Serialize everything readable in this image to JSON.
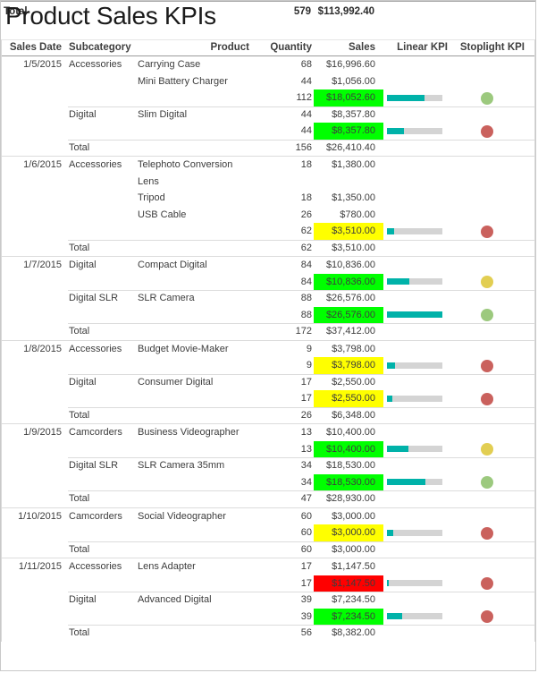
{
  "title": "Product Sales KPIs",
  "columns": [
    "Sales Date",
    "Subcategory",
    "Product",
    "Quantity",
    "Sales",
    "Linear KPI",
    "Stoplight KPI"
  ],
  "colors": {
    "bar_fill": "#00B2A9",
    "bar_track": "#D4D4D4",
    "stoplight_green": "#9CC97E",
    "stoplight_yellow": "#E2CE52",
    "stoplight_red": "#CA615D",
    "cell_green": "#00FF00",
    "cell_yellow": "#FFFF00",
    "cell_red": "#FF0000"
  },
  "groups": [
    {
      "date": "1/5/2015",
      "subgroups": [
        {
          "subcategory": "Accessories",
          "products": [
            {
              "name": "Carrying Case",
              "qty": "68",
              "sales": "$16,996.60"
            },
            {
              "name": "Mini Battery Charger",
              "qty": "44",
              "sales": "$1,056.00"
            }
          ],
          "subtotal": {
            "qty": "112",
            "sales": "$18,052.60",
            "level": "green",
            "bar_pct": 68,
            "stoplight": "green"
          }
        },
        {
          "subcategory": "Digital",
          "products": [
            {
              "name": "Slim Digital",
              "qty": "44",
              "sales": "$8,357.80"
            }
          ],
          "subtotal": {
            "qty": "44",
            "sales": "$8,357.80",
            "level": "green",
            "bar_pct": 31,
            "stoplight": "red"
          }
        }
      ],
      "total": {
        "label": "Total",
        "qty": "156",
        "sales": "$26,410.40"
      }
    },
    {
      "date": "1/6/2015",
      "subgroups": [
        {
          "subcategory": "Accessories",
          "products": [
            {
              "name": "Telephoto Conversion Lens",
              "qty": "18",
              "sales": "$1,380.00"
            },
            {
              "name": "Tripod",
              "qty": "18",
              "sales": "$1,350.00"
            },
            {
              "name": "USB Cable",
              "qty": "26",
              "sales": "$780.00"
            }
          ],
          "subtotal": {
            "qty": "62",
            "sales": "$3,510.00",
            "level": "yellow",
            "bar_pct": 13,
            "stoplight": "red"
          }
        }
      ],
      "total": {
        "label": "Total",
        "qty": "62",
        "sales": "$3,510.00"
      }
    },
    {
      "date": "1/7/2015",
      "subgroups": [
        {
          "subcategory": "Digital",
          "products": [
            {
              "name": "Compact Digital",
              "qty": "84",
              "sales": "$10,836.00"
            }
          ],
          "subtotal": {
            "qty": "84",
            "sales": "$10,836.00",
            "level": "green",
            "bar_pct": 41,
            "stoplight": "yellow"
          }
        },
        {
          "subcategory": "Digital SLR",
          "products": [
            {
              "name": "SLR Camera",
              "qty": "88",
              "sales": "$26,576.00"
            }
          ],
          "subtotal": {
            "qty": "88",
            "sales": "$26,576.00",
            "level": "green",
            "bar_pct": 100,
            "stoplight": "green"
          }
        }
      ],
      "total": {
        "label": "Total",
        "qty": "172",
        "sales": "$37,412.00"
      }
    },
    {
      "date": "1/8/2015",
      "subgroups": [
        {
          "subcategory": "Accessories",
          "products": [
            {
              "name": "Budget Movie-Maker",
              "qty": "9",
              "sales": "$3,798.00"
            }
          ],
          "subtotal": {
            "qty": "9",
            "sales": "$3,798.00",
            "level": "yellow",
            "bar_pct": 14,
            "stoplight": "red"
          }
        },
        {
          "subcategory": "Digital",
          "products": [
            {
              "name": "Consumer Digital",
              "qty": "17",
              "sales": "$2,550.00"
            }
          ],
          "subtotal": {
            "qty": "17",
            "sales": "$2,550.00",
            "level": "yellow",
            "bar_pct": 10,
            "stoplight": "red"
          }
        }
      ],
      "total": {
        "label": "Total",
        "qty": "26",
        "sales": "$6,348.00"
      }
    },
    {
      "date": "1/9/2015",
      "subgroups": [
        {
          "subcategory": "Camcorders",
          "products": [
            {
              "name": "Business Videographer",
              "qty": "13",
              "sales": "$10,400.00"
            }
          ],
          "subtotal": {
            "qty": "13",
            "sales": "$10,400.00",
            "level": "green",
            "bar_pct": 39,
            "stoplight": "yellow"
          }
        },
        {
          "subcategory": "Digital SLR",
          "products": [
            {
              "name": "SLR Camera 35mm",
              "qty": "34",
              "sales": "$18,530.00"
            }
          ],
          "subtotal": {
            "qty": "34",
            "sales": "$18,530.00",
            "level": "green",
            "bar_pct": 70,
            "stoplight": "green"
          }
        }
      ],
      "total": {
        "label": "Total",
        "qty": "47",
        "sales": "$28,930.00"
      }
    },
    {
      "date": "1/10/2015",
      "subgroups": [
        {
          "subcategory": "Camcorders",
          "products": [
            {
              "name": "Social Videographer",
              "qty": "60",
              "sales": "$3,000.00"
            }
          ],
          "subtotal": {
            "qty": "60",
            "sales": "$3,000.00",
            "level": "yellow",
            "bar_pct": 11,
            "stoplight": "red"
          }
        }
      ],
      "total": {
        "label": "Total",
        "qty": "60",
        "sales": "$3,000.00"
      }
    },
    {
      "date": "1/11/2015",
      "subgroups": [
        {
          "subcategory": "Accessories",
          "products": [
            {
              "name": "Lens Adapter",
              "qty": "17",
              "sales": "$1,147.50"
            }
          ],
          "subtotal": {
            "qty": "17",
            "sales": "$1,147.50",
            "level": "red",
            "bar_pct": 4,
            "stoplight": "red"
          }
        },
        {
          "subcategory": "Digital",
          "products": [
            {
              "name": "Advanced Digital",
              "qty": "39",
              "sales": "$7,234.50"
            }
          ],
          "subtotal": {
            "qty": "39",
            "sales": "$7,234.50",
            "level": "green",
            "bar_pct": 27,
            "stoplight": "red"
          }
        }
      ],
      "total": {
        "label": "Total",
        "qty": "56",
        "sales": "$8,382.00"
      }
    }
  ],
  "grand_total": {
    "label": "Total",
    "qty": "579",
    "sales": "$113,992.40"
  }
}
